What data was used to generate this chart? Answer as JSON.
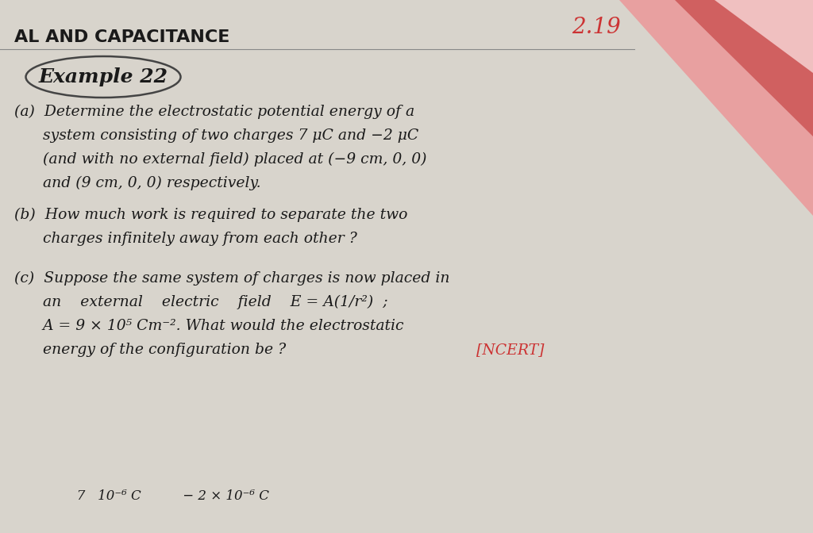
{
  "bg_color": "#d8d4cc",
  "header_text": "AL AND CAPACITANCE",
  "page_number": "2.19",
  "example_label": "Example 22",
  "part_a": "(a)  Determine the electrostatic potential energy of a\n      system consisting of two charges 7 μC and −2 μC\n      (and with no external field) placed at (−9 cm, 0, 0)\n      and (9 cm, 0, 0) respectively.",
  "part_b": "(b)  How much work is required to separate the two\n      charges infinitely away from each other ?",
  "part_c_line1": "(c)  Suppose the same system of charges is now placed in",
  "part_c_line2": "      an    external    electric    field    E = A(1/r²)  ;",
  "part_c_line3": "      A = 9 × 10⁵ Cm⁻². What would the electrostatic",
  "part_c_line4": "      energy of the configuration be ?",
  "ncert_label": "[NCERT]",
  "bottom_text": "               7   10⁻⁶ C          − 2 × 10⁻⁶ C",
  "header_color": "#1a1a1a",
  "page_num_color": "#cc3333",
  "example_color": "#1a1a1a",
  "body_color": "#1a1a1a",
  "ncert_color": "#cc3333",
  "pink_corner": true
}
